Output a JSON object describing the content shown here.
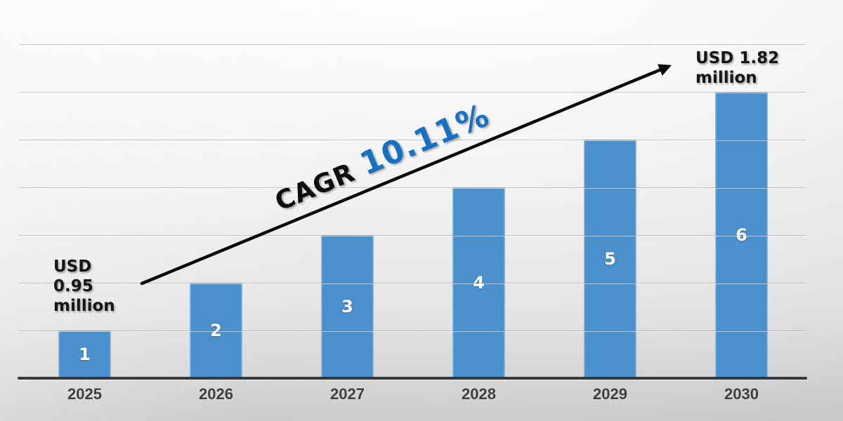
{
  "chart_data": {
    "type": "bar",
    "title": "",
    "categories": [
      "2025",
      "2026",
      "2027",
      "2028",
      "2029",
      "2030"
    ],
    "values": [
      1,
      2,
      3,
      4,
      5,
      6
    ],
    "bar_labels": [
      "1",
      "2",
      "3",
      "4",
      "5",
      "6"
    ],
    "ylim": [
      0,
      7
    ],
    "grid": true,
    "legend": false,
    "annotations": {
      "start_value": "USD\n0.95\nmillion",
      "end_value": "USD 1.82\nmillion",
      "cagr_prefix": "CAGR",
      "cagr_value": "10.11%"
    }
  },
  "colors": {
    "bar": "#4A90CC",
    "cagr_value": "#1770C0",
    "annotation_text": "#161616",
    "axis_line": "#383838",
    "tick_label": "#3F3F3F",
    "bar_label": "#FFFFFF",
    "arrow": "#0A0A0A"
  }
}
